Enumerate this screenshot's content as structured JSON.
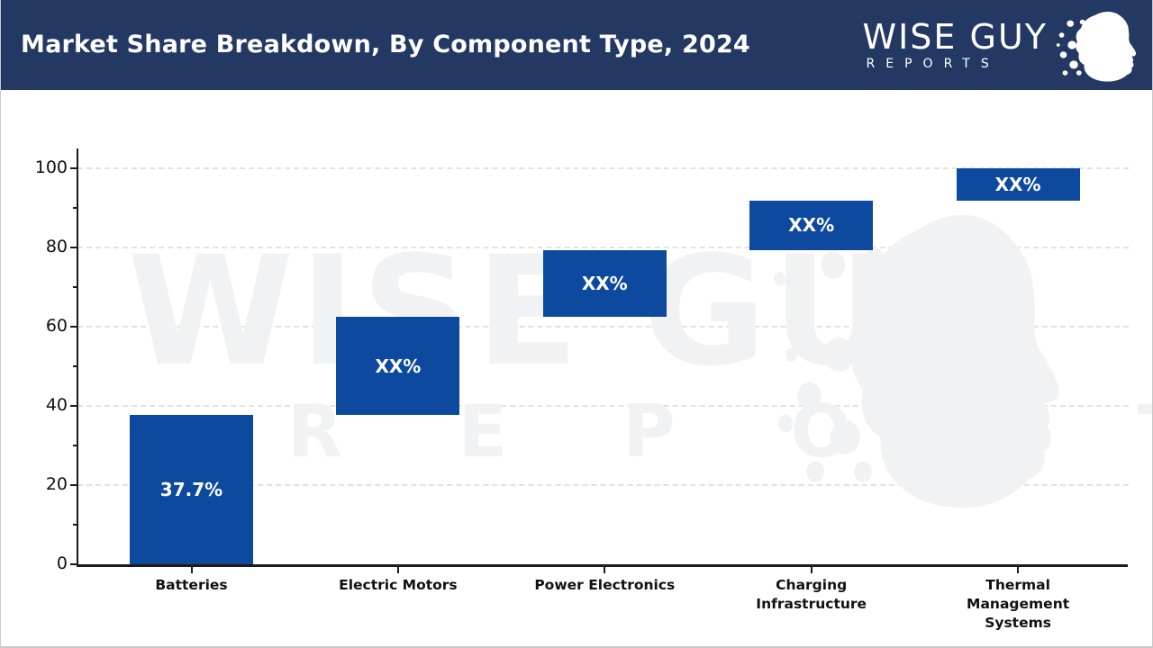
{
  "header": {
    "title": "Market Share Breakdown, By Component Type, 2024",
    "logo": {
      "line1": "WISE GUY",
      "line2": "REPORTS"
    }
  },
  "watermark": {
    "line1": "WISE GUY",
    "line2": "R E P O R T S"
  },
  "colors": {
    "header_bg": "#233862",
    "bar": "#0d4a9f",
    "grid": "#e2e2e2",
    "watermark": "#f1f2f4",
    "axis": "#1a1a1a",
    "bar_label": "#ffffff"
  },
  "chart_data": {
    "type": "bar",
    "subtype": "waterfall",
    "title": "Market Share Breakdown, By Component Type, 2024",
    "xlabel": "",
    "ylabel": "",
    "ylim": [
      0,
      100
    ],
    "yticks": [
      0,
      20,
      40,
      60,
      80,
      100
    ],
    "minor_yticks": [
      10,
      30,
      50,
      70,
      90
    ],
    "grid": "horizontal-dashed",
    "legend": "none",
    "categories": [
      "Batteries",
      "Electric Motors",
      "Power Electronics",
      "Charging Infrastructure",
      "Thermal Management Systems"
    ],
    "bars": [
      {
        "category": "Batteries",
        "start": 0,
        "end": 37.7,
        "value_label": "37.7%",
        "segment_estimate": 37.7
      },
      {
        "category": "Electric Motors",
        "start": 37.7,
        "end": 62.5,
        "value_label": "XX%",
        "segment_estimate": 24.8
      },
      {
        "category": "Power Electronics",
        "start": 62.5,
        "end": 79.4,
        "value_label": "XX%",
        "segment_estimate": 16.9
      },
      {
        "category": "Charging Infrastructure",
        "start": 79.4,
        "end": 91.8,
        "value_label": "XX%",
        "segment_estimate": 12.4
      },
      {
        "category": "Thermal Management Systems",
        "start": 91.8,
        "end": 100,
        "value_label": "XX%",
        "segment_estimate": 8.2
      }
    ]
  }
}
